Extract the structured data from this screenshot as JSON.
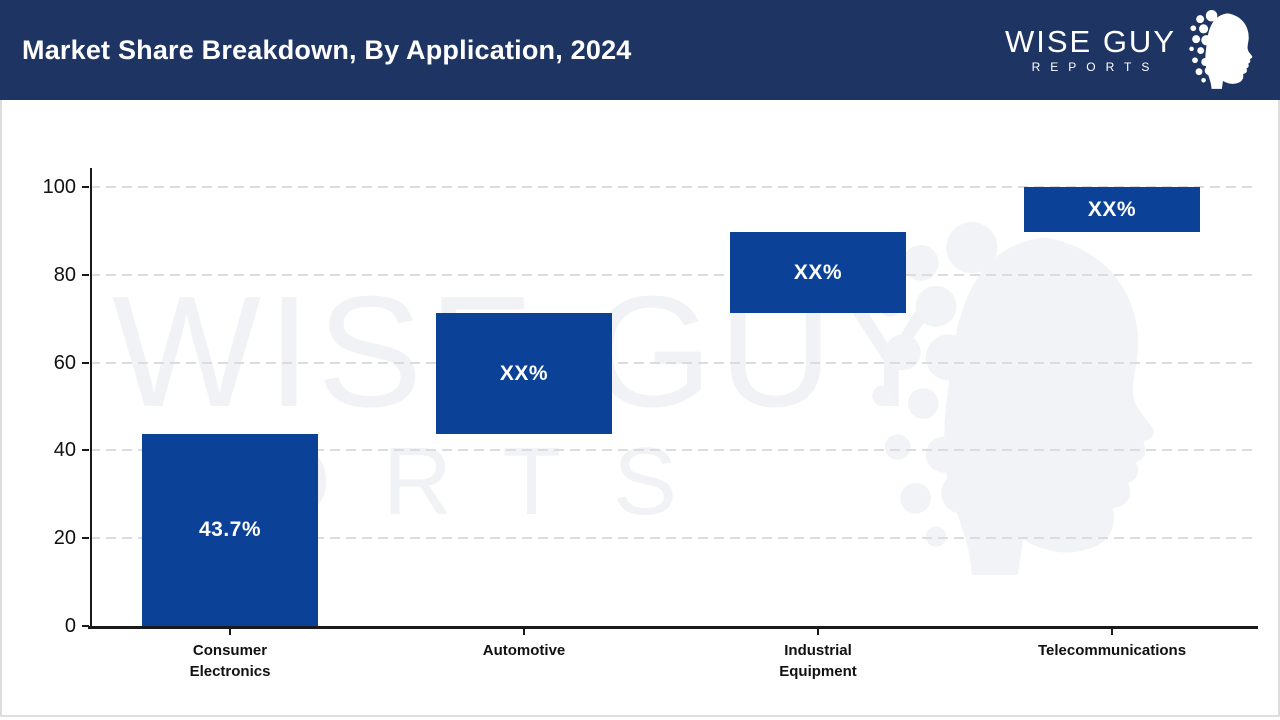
{
  "header": {
    "title": "Market Share Breakdown, By Application, 2024",
    "logo": {
      "line1": "WISE GUY",
      "line2": "REPORTS"
    }
  },
  "watermark": {
    "line1": "WISE GUY",
    "line2": "PORTS"
  },
  "colors": {
    "header_bg": "#1e3564",
    "bar": "#0b4297",
    "grid": "#dcdcdc",
    "axis": "#1a1a1a",
    "watermark": "#f1f2f6",
    "bar_label": "#ffffff"
  },
  "chart_data": {
    "type": "bar",
    "subtype": "waterfall-floating-bars",
    "title": "Market Share Breakdown, By Application, 2024",
    "categories": [
      "Consumer Electronics",
      "Automotive",
      "Industrial Equipment",
      "Telecommunications"
    ],
    "category_lines": [
      [
        "Consumer",
        "Electronics"
      ],
      [
        "Automotive"
      ],
      [
        "Industrial",
        "Equipment"
      ],
      [
        "Telecommunications"
      ]
    ],
    "segments": [
      {
        "category": "Consumer Electronics",
        "start": 0,
        "end": 43.7,
        "label": "43.7%"
      },
      {
        "category": "Automotive",
        "start": 43.7,
        "end": 71.3,
        "label": "XX%"
      },
      {
        "category": "Industrial Equipment",
        "start": 71.3,
        "end": 89.7,
        "label": "XX%"
      },
      {
        "category": "Telecommunications",
        "start": 89.7,
        "end": 100,
        "label": "XX%"
      }
    ],
    "ylim": [
      0,
      100
    ],
    "yticks": [
      0,
      20,
      40,
      60,
      80,
      100
    ],
    "grid": "horizontal-dashed",
    "legend": null,
    "xlabel": "",
    "ylabel": ""
  }
}
